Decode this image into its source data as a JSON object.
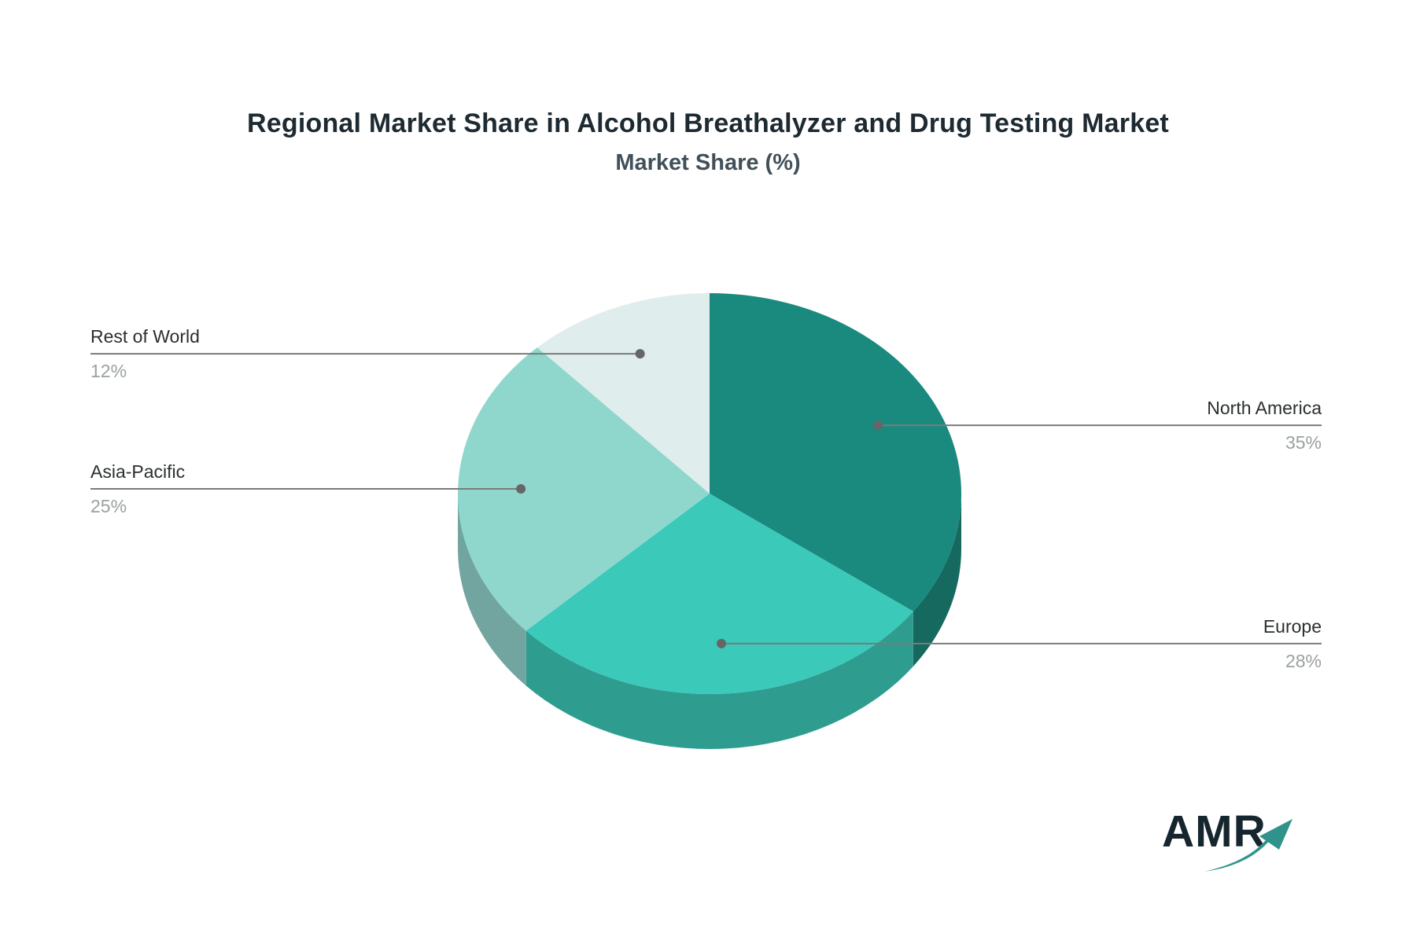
{
  "header": {
    "title": "Regional Market Share in Alcohol Breathalyzer and Drug Testing Market",
    "subtitle": "Market Share (%)"
  },
  "chart_data": {
    "type": "pie",
    "title": "Regional Market Share in Alcohol Breathalyzer and Drug Testing Market",
    "subtitle": "Market Share (%)",
    "unit": "%",
    "effect": "3d-depth",
    "start_angle_deg": 0,
    "direction": "clockwise",
    "legend_position": "callout-labels",
    "slices": [
      {
        "label": "North America",
        "value": 35,
        "color": "#1a8a7f",
        "side_color": "#15695f"
      },
      {
        "label": "Europe",
        "value": 28,
        "color": "#3bc9ba",
        "side_color": "#2f9c90"
      },
      {
        "label": "Asia-Pacific",
        "value": 25,
        "color": "#8fd7cd",
        "side_color": "#72a59f"
      },
      {
        "label": "Rest of World",
        "value": 12,
        "color": "#dfeeec",
        "side_color": "#aac7c3"
      }
    ]
  },
  "logo": {
    "text": "AMR"
  },
  "colors": {
    "background": "#ffffff",
    "title": "#1e2a32",
    "subtitle": "#41505a",
    "label_text": "#2b2f2f",
    "pct_text": "#9aa0a0",
    "leader_line": "#7b7b7b",
    "leader_dot": "#666666",
    "logo_text": "#16262e",
    "logo_arrow": "#2f938c"
  }
}
